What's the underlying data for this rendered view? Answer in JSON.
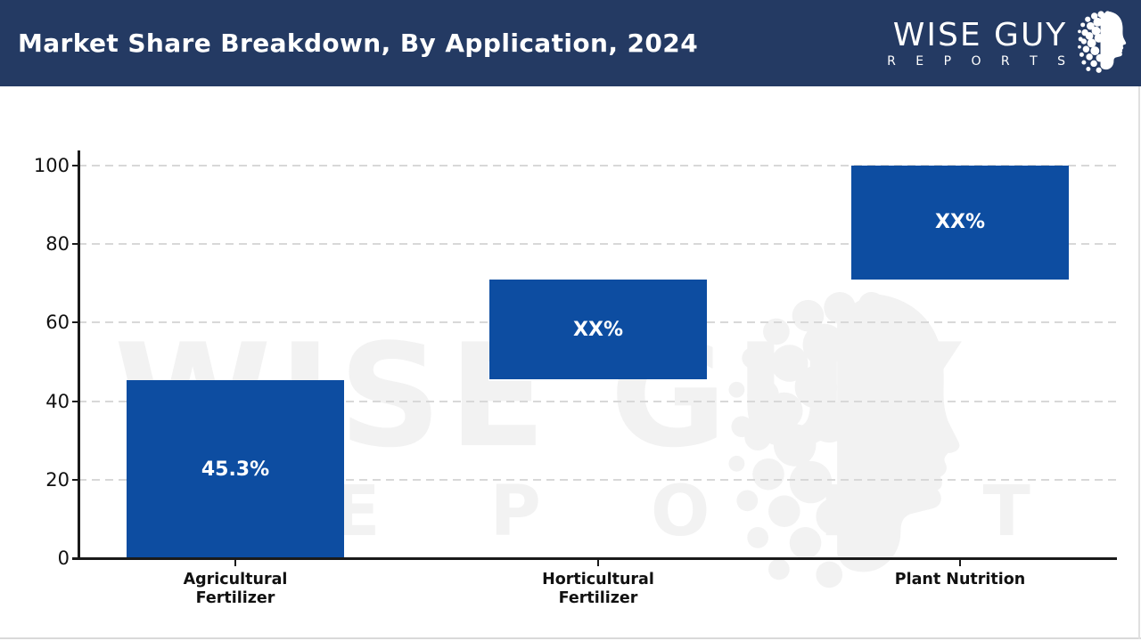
{
  "header": {
    "title": "Market Share Breakdown, By Application, 2024",
    "logo": {
      "name": "WISE GUY",
      "sub": "R E P O R T S"
    }
  },
  "watermark": {
    "line1": "WISE GUY",
    "line2": "R E P O R T S"
  },
  "chart_data": {
    "type": "bar",
    "subtype": "waterfall-stacked-segments",
    "title": "Market Share Breakdown, By Application, 2024",
    "categories": [
      [
        "Agricultural",
        "Fertilizer"
      ],
      [
        "Horticultural",
        "Fertilizer"
      ],
      [
        "Plant Nutrition"
      ]
    ],
    "segments": [
      {
        "category": "Agricultural Fertilizer",
        "start": 0,
        "end": 45.3,
        "label": "45.3%"
      },
      {
        "category": "Horticultural Fertilizer",
        "start": 45.5,
        "end": 71,
        "label": "XX%"
      },
      {
        "category": "Plant Nutrition",
        "start": 71,
        "end": 100,
        "label": "XX%"
      }
    ],
    "yticks": [
      0,
      20,
      40,
      60,
      80,
      100
    ],
    "ylim": [
      0,
      104
    ],
    "xlabel": "",
    "ylabel": "",
    "grid": "horizontal-dashed",
    "legend": null,
    "bar_color": "#0d4da1",
    "bar_label_color": "#ffffff"
  },
  "colors": {
    "header_bg": "#243a63",
    "bar": "#0d4da1",
    "grid": "#d8d8d8",
    "axis": "#1a1a1a",
    "watermark": "#f2f2f2"
  }
}
